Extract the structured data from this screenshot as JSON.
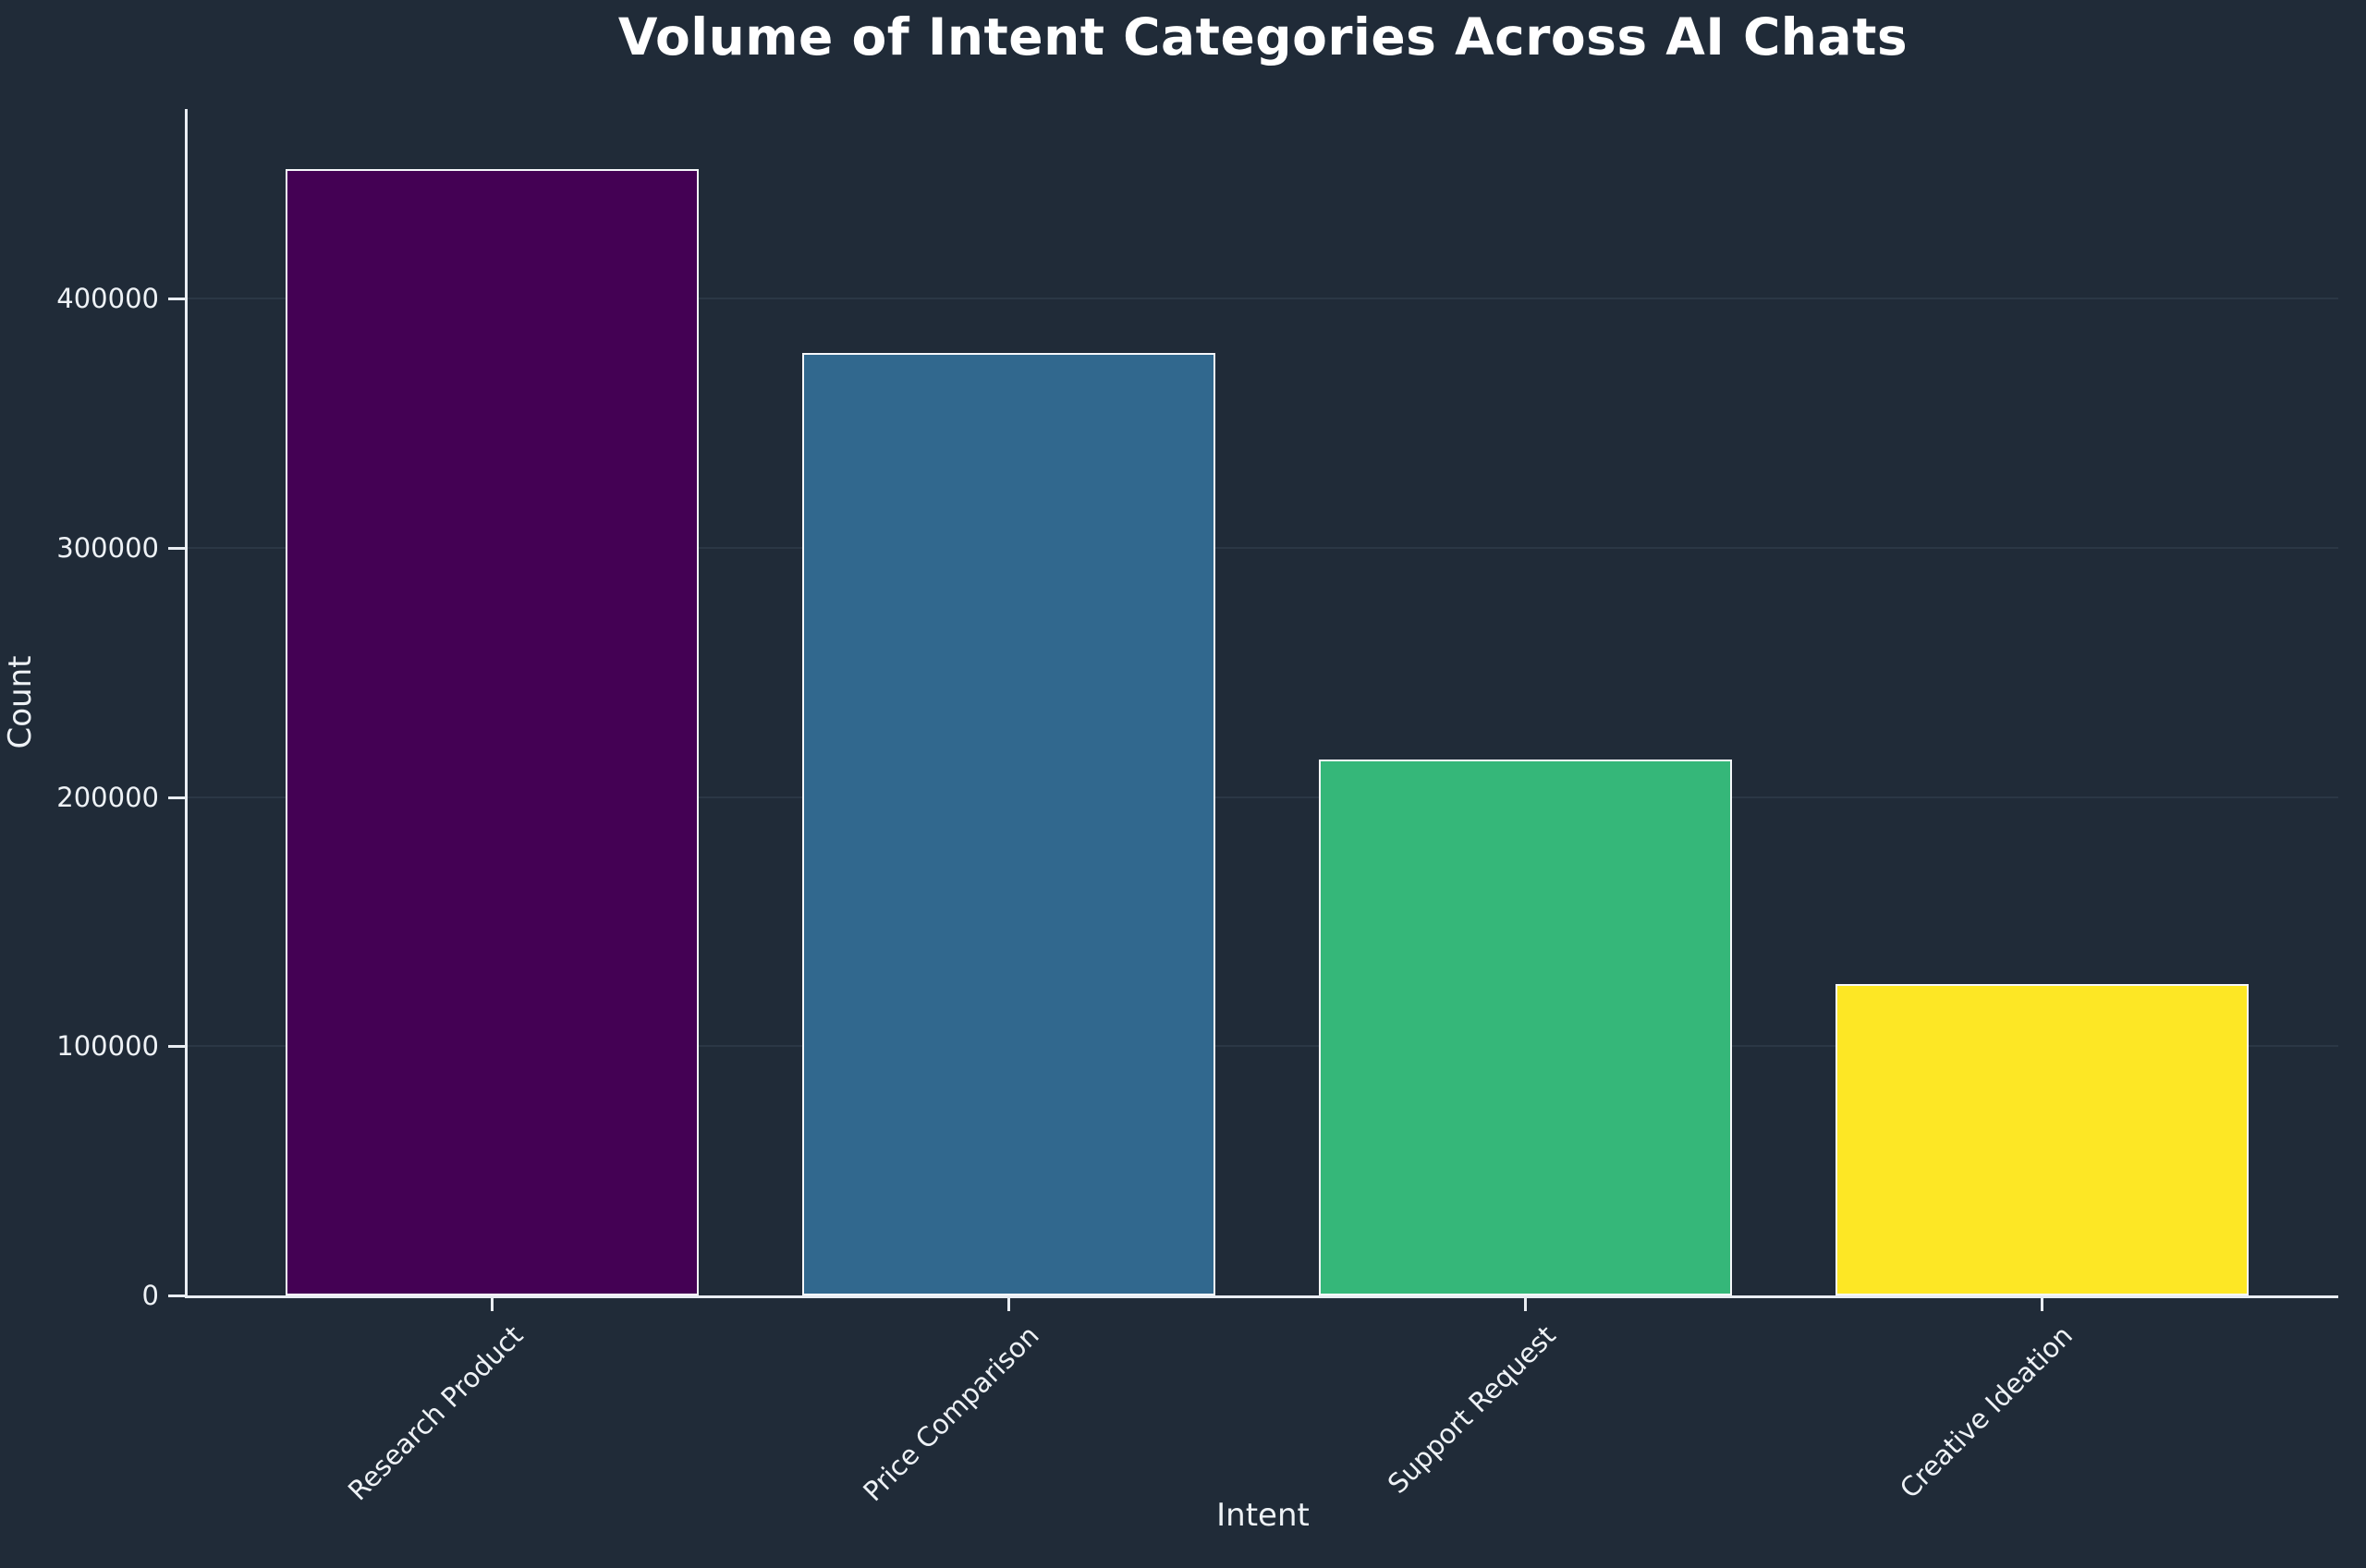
{
  "chart_data": {
    "type": "bar",
    "title": "Volume of Intent Categories Across AI Chats",
    "xlabel": "Intent",
    "ylabel": "Count",
    "categories": [
      "Research Product",
      "Price Comparison",
      "Support Request",
      "Creative Ideation"
    ],
    "values": [
      452000,
      378000,
      215000,
      125000
    ],
    "bar_colors": [
      "#440154",
      "#31688e",
      "#35b779",
      "#fde725"
    ],
    "yticks": [
      0,
      100000,
      200000,
      300000,
      400000
    ],
    "ytick_labels": [
      "0",
      "100000",
      "200000",
      "300000",
      "400000"
    ],
    "ylim": [
      0,
      476000
    ],
    "grid": "horizontal-faint",
    "legend_position": "none",
    "colors": {
      "background": "#202b38",
      "bar_edge": "#f5f7fa",
      "axis": "#e9edf2",
      "grid": "#2b3745",
      "tick_text": "#eef2f6",
      "title_text": "#ffffff"
    }
  }
}
